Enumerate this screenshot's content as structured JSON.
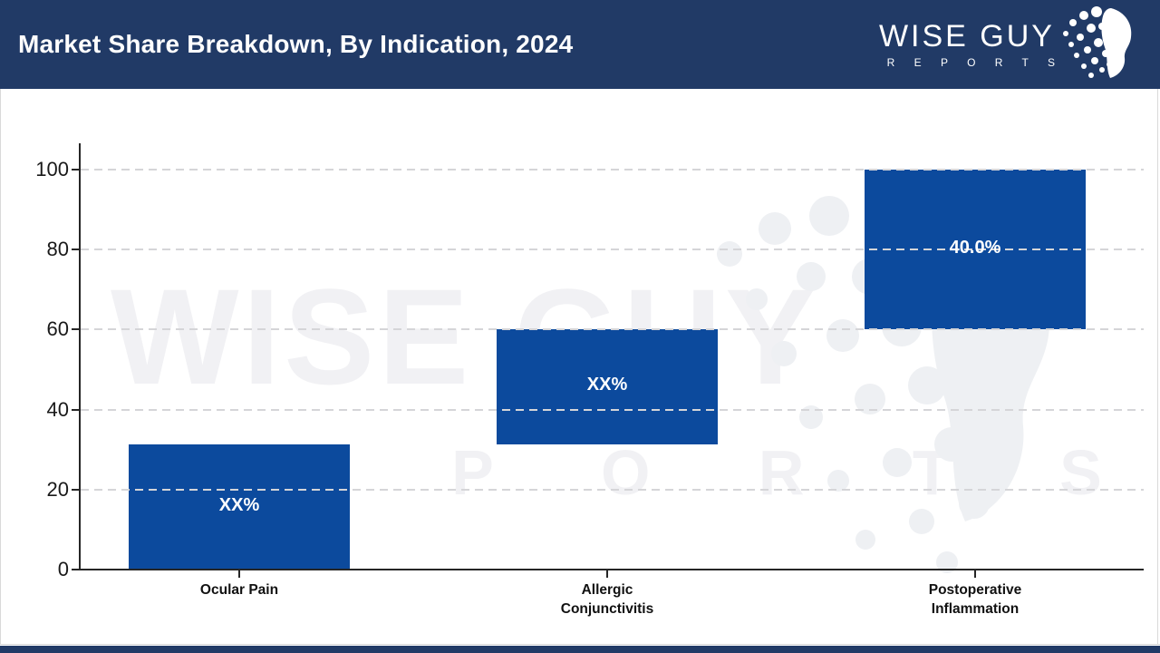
{
  "header": {
    "title": "Market Share Breakdown, By Indication, 2024",
    "bg_color": "#213A66",
    "logo": {
      "line1": "WISE GUY",
      "line2": "R E P O R T S"
    }
  },
  "watermark": {
    "line1": "WISE GUY",
    "line2": "R E P O R T S",
    "color": "#F1F1F4"
  },
  "chart_data": {
    "type": "bar",
    "subtype": "waterfall",
    "title": "Market Share Breakdown, By Indication, 2024",
    "categories": [
      "Ocular Pain",
      "Allergic\nConjunctivitis",
      "Postoperative\nInflammation"
    ],
    "segments": [
      {
        "category": "Ocular Pain",
        "from": 0,
        "to": 31.4,
        "label": "XX%"
      },
      {
        "category": "Allergic Conjunctivitis",
        "from": 31.4,
        "to": 60.0,
        "label": "XX%"
      },
      {
        "category": "Postoperative Inflammation",
        "from": 60.0,
        "to": 100.0,
        "label": "40.0%"
      }
    ],
    "bar_labels": [
      "XX%",
      "XX%",
      "40.0%"
    ],
    "yticks": [
      0,
      20,
      40,
      60,
      80,
      100
    ],
    "ylim": [
      0,
      106
    ],
    "xlabel": "",
    "ylabel": "",
    "legend": "none",
    "grid": {
      "axis": "y",
      "style": "dashed",
      "on": true
    },
    "bar_color": "#0C4A9D",
    "grid_color": "#D5D5D8"
  }
}
